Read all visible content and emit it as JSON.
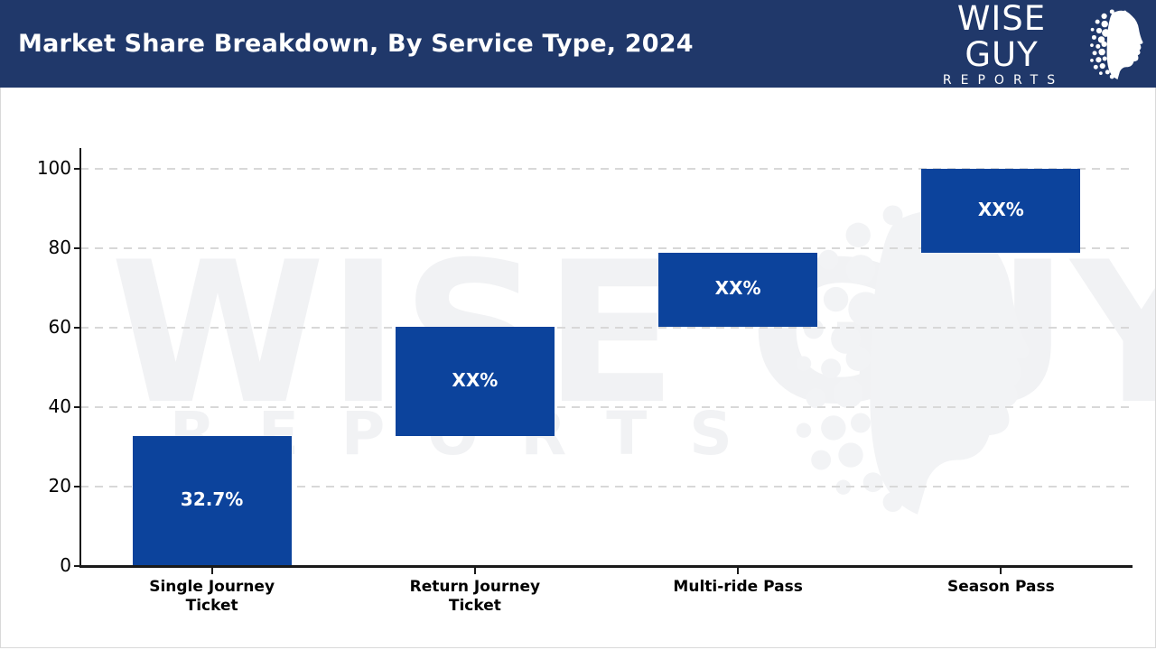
{
  "header": {
    "title": "Market Share Breakdown, By Service Type, 2024",
    "logo": {
      "line1": "WISE GUY",
      "line2": "REPORTS"
    }
  },
  "watermark": {
    "line1": "WISE GUY",
    "line2": "REPORTS"
  },
  "colors": {
    "header_bg": "#20386a",
    "bar": "#0c439c",
    "grid": "#d8d8d8",
    "axis": "#1a1a1a",
    "watermark": "#f1f2f4",
    "title_text": "#ffffff",
    "bar_label_text": "#ffffff"
  },
  "chart_data": {
    "type": "bar",
    "subtype": "waterfall",
    "title": "Market Share Breakdown, By Service Type, 2024",
    "categories": [
      "Single Journey Ticket",
      "Return Journey Ticket",
      "Multi-ride Pass",
      "Season Pass"
    ],
    "category_lines": [
      [
        "Single Journey",
        "Ticket"
      ],
      [
        "Return Journey",
        "Ticket"
      ],
      [
        "Multi-ride Pass"
      ],
      [
        "Season Pass"
      ]
    ],
    "series": [
      {
        "name": "Market Share %",
        "starts": [
          0,
          32.7,
          60.3,
          79.0
        ],
        "ends": [
          32.7,
          60.3,
          79.0,
          100.0
        ]
      }
    ],
    "bar_labels": [
      "32.7%",
      "XX%",
      "XX%",
      "XX%"
    ],
    "yticks": [
      0,
      20,
      40,
      60,
      80,
      100
    ],
    "ylim": [
      0,
      104.4
    ],
    "xlabel": "",
    "ylabel": "",
    "grid": "dashed-horizontal",
    "legend": false,
    "bar_color": "#0c439c"
  }
}
